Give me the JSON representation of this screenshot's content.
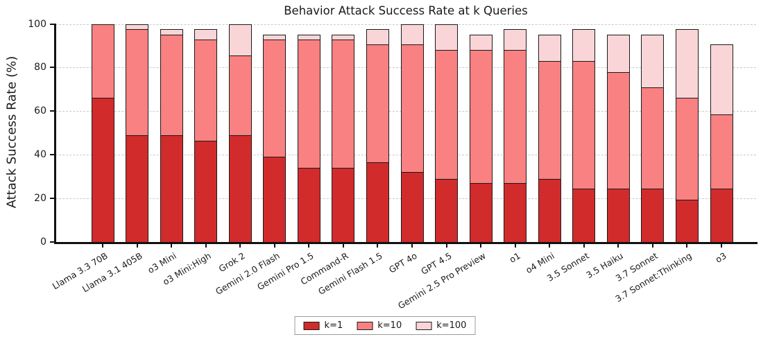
{
  "title": "Behavior Attack Success Rate at k Queries",
  "ylabel": "Attack Success Rate (%)",
  "colors": {
    "k1": "#d22b2b",
    "k10": "#f98181",
    "k100": "#fad5d7",
    "edge": "#1a1a1a"
  },
  "chart_data": {
    "type": "bar",
    "stacked": true,
    "title": "Behavior Attack Success Rate at k Queries",
    "xlabel": "",
    "ylabel": "Attack Success Rate (%)",
    "ylim": [
      0,
      100
    ],
    "yticks": [
      0,
      20,
      40,
      60,
      80,
      100
    ],
    "grid": "horizontal-dashed",
    "legend_position": "bottom-center",
    "values_are_cumulative": true,
    "categories": [
      "Llama 3.3 70B",
      "Llama 3.1 405B",
      "o3 Mini",
      "o3 Mini:High",
      "Grok 2",
      "Gemini 2.0 Flash",
      "Gemini Pro 1.5",
      "Command-R",
      "Gemini Flash 1.5",
      "GPT 4o",
      "GPT 4.5",
      "Gemini 2.5 Pro Preview",
      "o1",
      "o4 Mini",
      "3.5 Sonnet",
      "3.5 Haiku",
      "3.7 Sonnet",
      "3.7 Sonnet:Thinking",
      "o3"
    ],
    "series": [
      {
        "name": "k=1",
        "color": "#d22b2b",
        "values": [
          66,
          49,
          49,
          46.5,
          49,
          39,
          34,
          34,
          36.5,
          32,
          29,
          27,
          27,
          29,
          24.5,
          24.5,
          24.5,
          19.5,
          24.5
        ]
      },
      {
        "name": "k=10",
        "color": "#f98181",
        "values": [
          100,
          97.5,
          95,
          93,
          85.5,
          93,
          93,
          93,
          90.5,
          90.5,
          88,
          88,
          88,
          83,
          83,
          78,
          71,
          66,
          58.5
        ]
      },
      {
        "name": "k=100",
        "color": "#fad5d7",
        "values": [
          100,
          100,
          97.5,
          97.5,
          100,
          95,
          95,
          95,
          97.5,
          100,
          100,
          95,
          97.5,
          95,
          97.5,
          95,
          95,
          97.5,
          90.5
        ]
      }
    ]
  }
}
